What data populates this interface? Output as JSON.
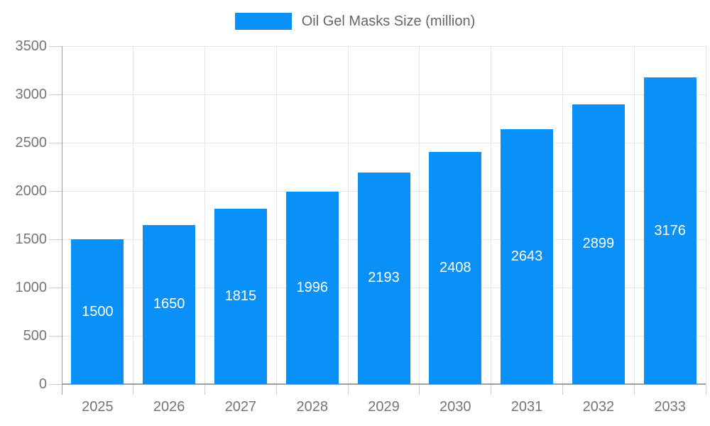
{
  "legend": {
    "label": "Oil Gel Masks Size (million)"
  },
  "colors": {
    "bar": "#0a90f7",
    "bar_label": "#ffffff",
    "axis_label": "#757575",
    "legend_text": "#666666",
    "gridline": "#e6e6e6",
    "axis_line": "#9e9e9e",
    "tick": "#cccccc"
  },
  "chart_data": {
    "type": "bar",
    "title": "Oil Gel Masks Size (million)",
    "categories": [
      "2025",
      "2026",
      "2027",
      "2028",
      "2029",
      "2030",
      "2031",
      "2032",
      "2033"
    ],
    "values": [
      1500,
      1650,
      1815,
      1996,
      2193,
      2408,
      2643,
      2899,
      3176
    ],
    "xlabel": "",
    "ylabel": "",
    "ylim": [
      0,
      3500
    ],
    "yticks": [
      0,
      500,
      1000,
      1500,
      2000,
      2500,
      3000,
      3500
    ],
    "grid": true,
    "legend_position": "top",
    "value_labels_position": "inside-center"
  }
}
